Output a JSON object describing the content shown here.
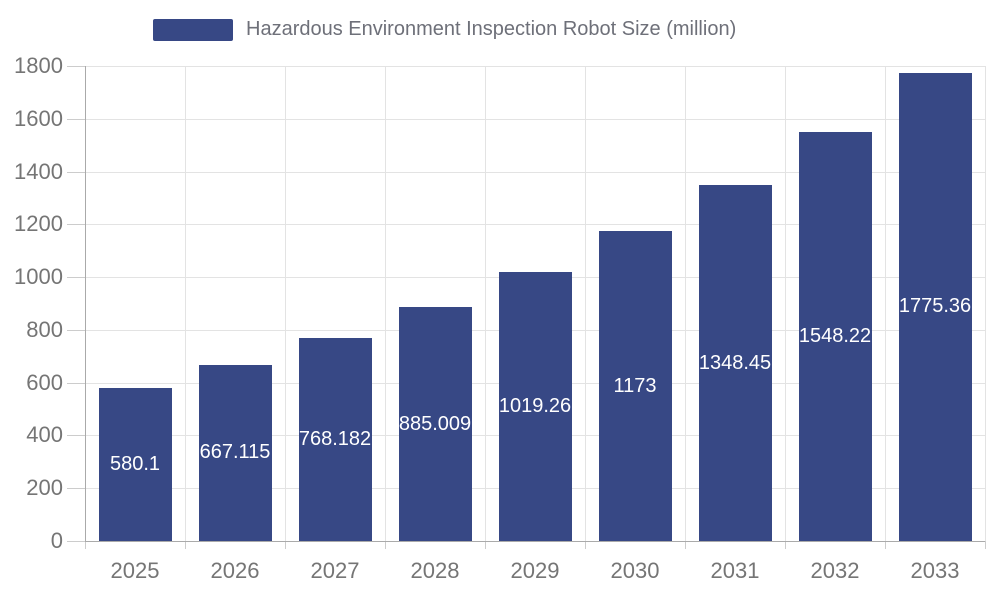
{
  "chart_data": {
    "type": "bar",
    "title": "Hazardous Environment Inspection Robot Size (million)",
    "categories": [
      "2025",
      "2026",
      "2027",
      "2028",
      "2029",
      "2030",
      "2031",
      "2032",
      "2033"
    ],
    "values": [
      580.1,
      667.115,
      768.182,
      885.009,
      1019.26,
      1173,
      1348.45,
      1548.22,
      1775.36
    ],
    "value_labels": [
      "580.1",
      "667.115",
      "768.182",
      "885.009",
      "1019.26",
      "1173",
      "1348.45",
      "1548.22",
      "1775.36"
    ],
    "xlabel": "",
    "ylabel": "",
    "ylim": [
      0,
      1800
    ],
    "yticks": [
      0,
      200,
      400,
      600,
      800,
      1000,
      1200,
      1400,
      1600,
      1800
    ],
    "grid": true,
    "legend_position": "top",
    "colors": {
      "bar": "#374885",
      "bar_label": "#ffffff",
      "axis_text": "#757575",
      "legend_text": "#6e7079",
      "gridline": "#e3e3e3",
      "axis_line": "#aaaaaa",
      "tick": "#cccccc",
      "background": "#ffffff"
    }
  }
}
